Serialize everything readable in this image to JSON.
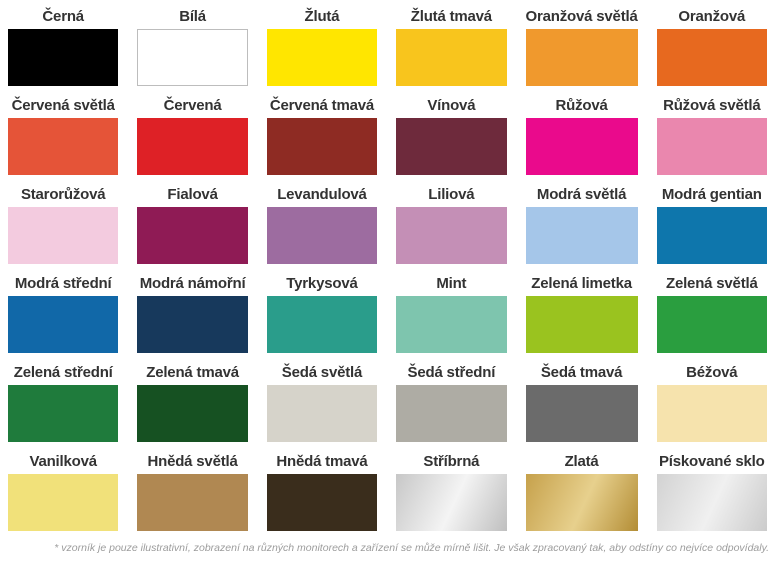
{
  "palette": {
    "swatches": [
      {
        "label": "Černá",
        "color": "#000000"
      },
      {
        "label": "Bílá",
        "color": "#ffffff",
        "border": "#bdbdbd"
      },
      {
        "label": "Žlutá",
        "color": "#ffe600"
      },
      {
        "label": "Žlutá tmavá",
        "color": "#f8c51d"
      },
      {
        "label": "Oranžová světlá",
        "color": "#f0992d"
      },
      {
        "label": "Oranžová",
        "color": "#e7691f"
      },
      {
        "label": "Červená světlá",
        "color": "#e55438"
      },
      {
        "label": "Červená",
        "color": "#de2126"
      },
      {
        "label": "Červená tmavá",
        "color": "#8e2b23"
      },
      {
        "label": "Vínová",
        "color": "#6e2a3c"
      },
      {
        "label": "Růžová",
        "color": "#ea0a8c"
      },
      {
        "label": "Růžová světlá",
        "color": "#ea87ae"
      },
      {
        "label": "Starorůžová",
        "color": "#f3cbdf"
      },
      {
        "label": "Fialová",
        "color": "#8f1b55"
      },
      {
        "label": "Levandulová",
        "color": "#9d6ca0"
      },
      {
        "label": "Liliová",
        "color": "#c48fb6"
      },
      {
        "label": "Modrá světlá",
        "color": "#a5c6e9"
      },
      {
        "label": "Modrá gentian",
        "color": "#0e76ac"
      },
      {
        "label": "Modrá střední",
        "color": "#1168a8"
      },
      {
        "label": "Modrá námořní",
        "color": "#17395c"
      },
      {
        "label": "Tyrkysová",
        "color": "#2a9d8b"
      },
      {
        "label": "Mint",
        "color": "#7ec5ae"
      },
      {
        "label": "Zelená limetka",
        "color": "#9ac31f"
      },
      {
        "label": "Zelená světlá",
        "color": "#2a9e3f"
      },
      {
        "label": "Zelená střední",
        "color": "#1f7b3c"
      },
      {
        "label": "Zelená tmavá",
        "color": "#165122"
      },
      {
        "label": "Šedá světlá",
        "color": "#d6d3ca"
      },
      {
        "label": "Šedá střední",
        "color": "#aeaca4"
      },
      {
        "label": "Šedá tmavá",
        "color": "#6b6b6b"
      },
      {
        "label": "Béžová",
        "color": "#f6e3ad"
      },
      {
        "label": "Vanilková",
        "color": "#f1e17a"
      },
      {
        "label": "Hnědá světlá",
        "color": "#b08852"
      },
      {
        "label": "Hnědá tmavá",
        "color": "#3a2d1c"
      },
      {
        "label": "Stříbrná",
        "gradient": [
          "#c7c7c7",
          "#f4f4f4",
          "#bfbfbf"
        ]
      },
      {
        "label": "Zlatá",
        "gradient": [
          "#c6a14b",
          "#e7d08d",
          "#b38d35"
        ]
      },
      {
        "label": "Pískované sklo",
        "gradient": [
          "#d2d2d2",
          "#f0f0f0",
          "#cbcbcb"
        ]
      }
    ]
  },
  "footer": {
    "note": "* vzorník je pouze ilustrativní, zobrazení na různých monitorech a zařízení se může mírně lišit. Je však zpracovaný tak, aby odstíny co nejvíce odpovídaly."
  }
}
